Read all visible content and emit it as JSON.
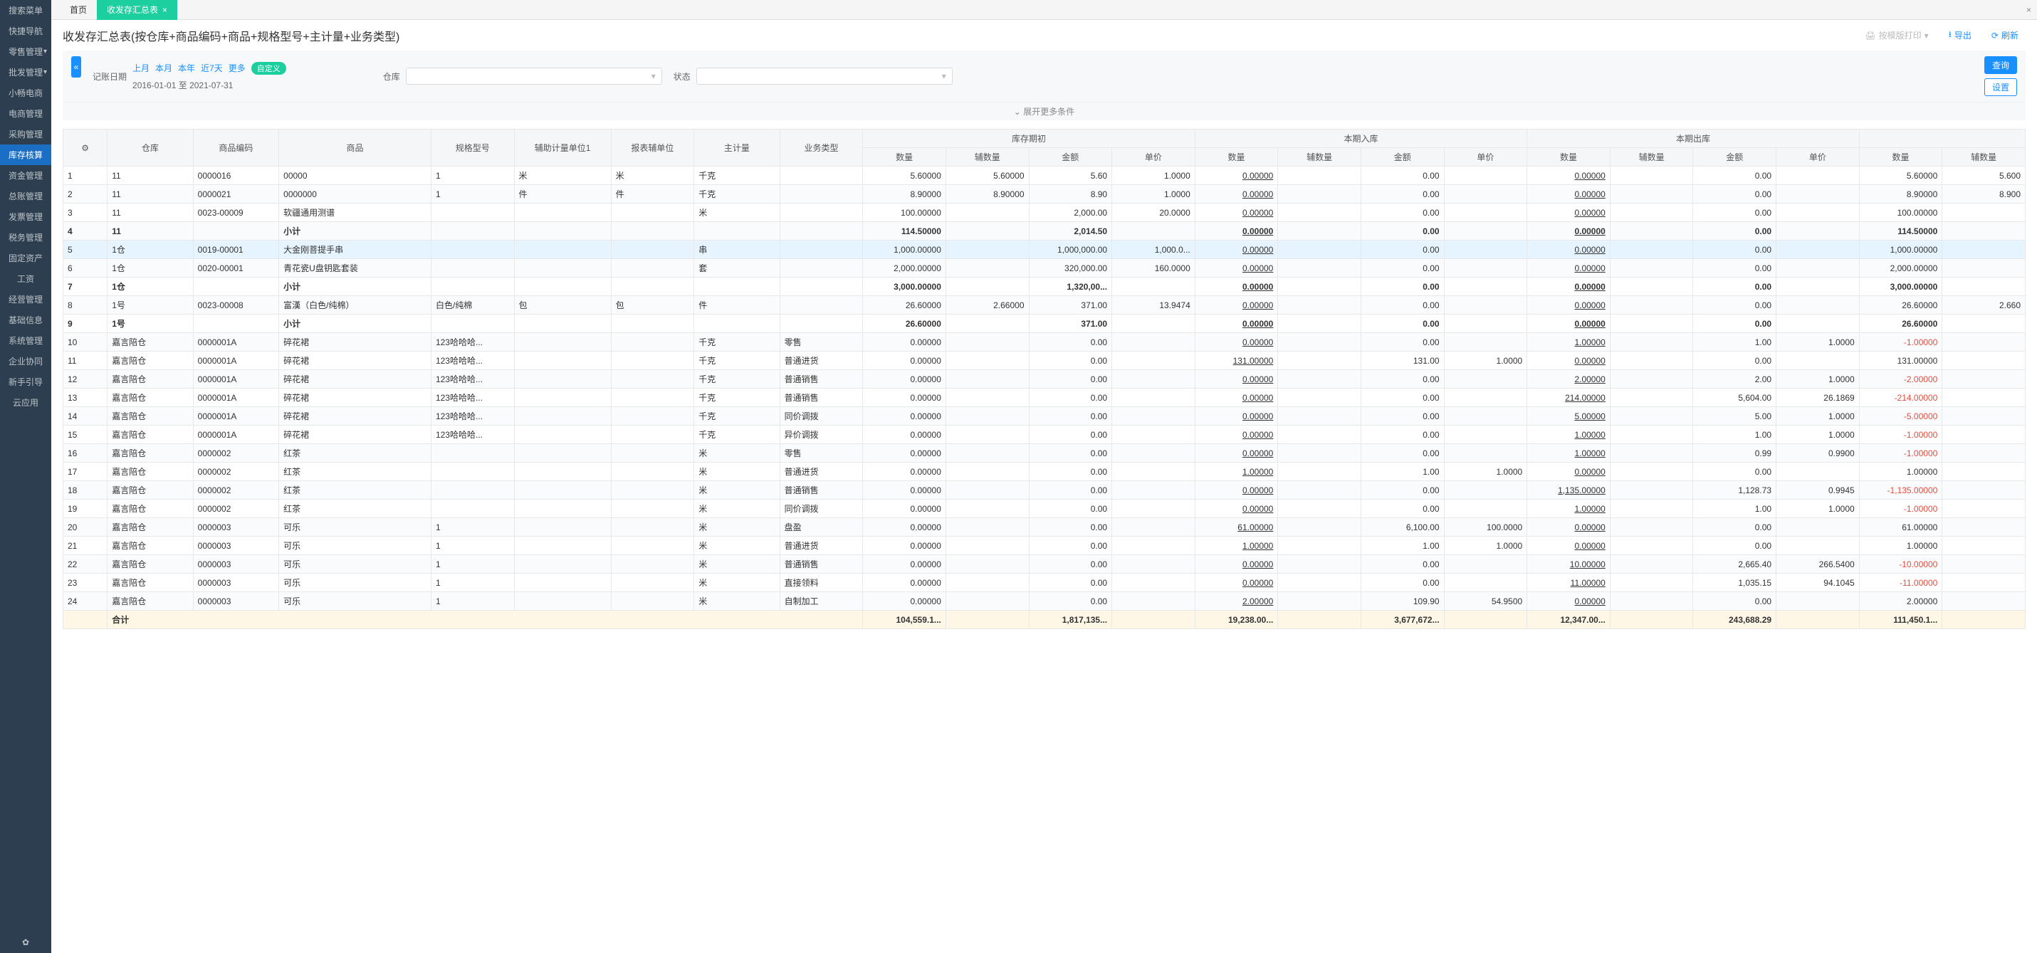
{
  "sidebar": {
    "items": [
      {
        "label": "搜索菜单"
      },
      {
        "label": "快捷导航"
      },
      {
        "label": "零售管理",
        "expandable": true
      },
      {
        "label": "批发管理",
        "expandable": true
      },
      {
        "label": "小畅电商"
      },
      {
        "label": "电商管理"
      },
      {
        "label": "采购管理"
      },
      {
        "label": "库存核算",
        "active": true
      },
      {
        "label": "资金管理"
      },
      {
        "label": "总账管理"
      },
      {
        "label": "发票管理"
      },
      {
        "label": "税务管理"
      },
      {
        "label": "固定资产"
      },
      {
        "label": "工资"
      },
      {
        "label": "经营管理"
      },
      {
        "label": "基础信息"
      },
      {
        "label": "系统管理"
      },
      {
        "label": "企业协同"
      },
      {
        "label": "新手引导"
      },
      {
        "label": "云应用"
      }
    ]
  },
  "tabs": {
    "home": "首页",
    "current": "收发存汇总表"
  },
  "page": {
    "title": "收发存汇总表(按仓库+商品编码+商品+规格型号+主计量+业务类型)",
    "print": "按模版打印",
    "export": "导出",
    "refresh": "刷新"
  },
  "filter": {
    "date_label": "记账日期",
    "shortcuts": [
      "上月",
      "本月",
      "本年",
      "近7天",
      "更多"
    ],
    "custom_badge": "自定义",
    "date_range": "2016-01-01 至 2021-07-31",
    "warehouse_label": "仓库",
    "status_label": "状态",
    "query": "查询",
    "settings": "设置",
    "expand": "展开更多条件"
  },
  "columns": {
    "gear": "⚙",
    "warehouse": "仓库",
    "code": "商品编码",
    "product": "商品",
    "spec": "规格型号",
    "aux_unit": "辅助计量单位1",
    "inv_unit": "报表辅单位",
    "main_unit": "主计量",
    "biz_type": "业务类型",
    "group_open": "库存期初",
    "group_in": "本期入库",
    "group_out": "本期出库",
    "qty": "数量",
    "aux_qty": "辅数量",
    "amount": "金额",
    "price": "单价"
  },
  "rows": [
    {
      "idx": "1",
      "wh": "11",
      "code": "0000016",
      "name": "00000",
      "spec": "1",
      "aux": "米",
      "inv": "米",
      "main": "千克",
      "biz": "",
      "o_qty": "5.60000",
      "o_aux": "5.60000",
      "o_amt": "5.60",
      "o_pr": "1.0000",
      "i_qty": "0.00000",
      "i_amt": "0.00",
      "out_qty": "0.00000",
      "out_amt": "0.00",
      "b_qty": "5.60000",
      "b_aux": "5.600"
    },
    {
      "idx": "2",
      "wh": "11",
      "code": "0000021",
      "name": "0000000",
      "spec": "1",
      "aux": "件",
      "inv": "件",
      "main": "千克",
      "biz": "",
      "o_qty": "8.90000",
      "o_aux": "8.90000",
      "o_amt": "8.90",
      "o_pr": "1.0000",
      "i_qty": "0.00000",
      "i_amt": "0.00",
      "out_qty": "0.00000",
      "out_amt": "0.00",
      "b_qty": "8.90000",
      "b_aux": "8.900"
    },
    {
      "idx": "3",
      "wh": "11",
      "code": "0023-00009",
      "name": "软疆通用测谱",
      "spec": "",
      "aux": "",
      "inv": "",
      "main": "米",
      "biz": "",
      "o_qty": "100.00000",
      "o_aux": "",
      "o_amt": "2,000.00",
      "o_pr": "20.0000",
      "i_qty": "0.00000",
      "i_amt": "0.00",
      "out_qty": "0.00000",
      "out_amt": "0.00",
      "b_qty": "100.00000",
      "b_aux": ""
    },
    {
      "idx": "4",
      "wh": "11",
      "code": "",
      "name": "小计",
      "sub": true,
      "o_qty": "114.50000",
      "o_amt": "2,014.50",
      "i_qty": "0.00000",
      "i_amt": "0.00",
      "out_qty": "0.00000",
      "out_amt": "0.00",
      "b_qty": "114.50000"
    },
    {
      "idx": "5",
      "wh": "1仓",
      "code": "0019-00001",
      "name": "大金刚菩提手串",
      "main": "串",
      "hl": true,
      "o_qty": "1,000.00000",
      "o_amt": "1,000,000.00",
      "o_pr": "1,000.0...",
      "i_qty": "0.00000",
      "i_amt": "0.00",
      "out_qty": "0.00000",
      "out_amt": "0.00",
      "b_qty": "1,000.00000"
    },
    {
      "idx": "6",
      "wh": "1仓",
      "code": "0020-00001",
      "name": "青花瓷U盘钥匙套装",
      "main": "套",
      "o_qty": "2,000.00000",
      "o_amt": "320,000.00",
      "o_pr": "160.0000",
      "i_qty": "0.00000",
      "i_amt": "0.00",
      "out_qty": "0.00000",
      "out_amt": "0.00",
      "b_qty": "2,000.00000"
    },
    {
      "idx": "7",
      "wh": "1仓",
      "code": "",
      "name": "小计",
      "sub": true,
      "o_qty": "3,000.00000",
      "o_amt": "1,320,00...",
      "i_qty": "0.00000",
      "i_amt": "0.00",
      "out_qty": "0.00000",
      "out_amt": "0.00",
      "b_qty": "3,000.00000"
    },
    {
      "idx": "8",
      "wh": "1号",
      "code": "0023-00008",
      "name": "富漢（白色/纯棉）",
      "spec": "白色/纯棉",
      "aux": "包",
      "inv": "包",
      "main": "件",
      "o_qty": "26.60000",
      "o_aux": "2.66000",
      "o_amt": "371.00",
      "o_pr": "13.9474",
      "i_qty": "0.00000",
      "i_amt": "0.00",
      "out_qty": "0.00000",
      "out_amt": "0.00",
      "b_qty": "26.60000",
      "b_aux": "2.660"
    },
    {
      "idx": "9",
      "wh": "1号",
      "code": "",
      "name": "小计",
      "sub": true,
      "o_qty": "26.60000",
      "o_amt": "371.00",
      "i_qty": "0.00000",
      "i_amt": "0.00",
      "out_qty": "0.00000",
      "out_amt": "0.00",
      "b_qty": "26.60000"
    },
    {
      "idx": "10",
      "wh": "嘉言陪仓",
      "code": "0000001A",
      "name": "碎花裙",
      "spec": "123哈哈哈...",
      "main": "千克",
      "biz": "零售",
      "o_qty": "0.00000",
      "o_amt": "0.00",
      "i_qty": "0.00000",
      "i_amt": "0.00",
      "out_qty": "1.00000",
      "out_amt": "1.00",
      "out_pr": "1.0000",
      "b_qty": "-1.00000",
      "neg": true
    },
    {
      "idx": "11",
      "wh": "嘉言陪仓",
      "code": "0000001A",
      "name": "碎花裙",
      "spec": "123哈哈哈...",
      "main": "千克",
      "biz": "普通进货",
      "o_qty": "0.00000",
      "o_amt": "0.00",
      "i_qty": "131.00000",
      "i_amt": "131.00",
      "i_pr": "1.0000",
      "out_qty": "0.00000",
      "out_amt": "0.00",
      "b_qty": "131.00000"
    },
    {
      "idx": "12",
      "wh": "嘉言陪仓",
      "code": "0000001A",
      "name": "碎花裙",
      "spec": "123哈哈哈...",
      "main": "千克",
      "biz": "普通销售",
      "o_qty": "0.00000",
      "o_amt": "0.00",
      "i_qty": "0.00000",
      "i_amt": "0.00",
      "out_qty": "2.00000",
      "out_amt": "2.00",
      "out_pr": "1.0000",
      "b_qty": "-2.00000",
      "neg": true
    },
    {
      "idx": "13",
      "wh": "嘉言陪仓",
      "code": "0000001A",
      "name": "碎花裙",
      "spec": "123哈哈哈...",
      "main": "千克",
      "biz": "普通销售",
      "o_qty": "0.00000",
      "o_amt": "0.00",
      "i_qty": "0.00000",
      "i_amt": "0.00",
      "out_qty": "214.00000",
      "out_amt": "5,604.00",
      "out_pr": "26.1869",
      "b_qty": "-214.00000",
      "neg": true
    },
    {
      "idx": "14",
      "wh": "嘉言陪仓",
      "code": "0000001A",
      "name": "碎花裙",
      "spec": "123哈哈哈...",
      "main": "千克",
      "biz": "同价调拨",
      "o_qty": "0.00000",
      "o_amt": "0.00",
      "i_qty": "0.00000",
      "i_amt": "0.00",
      "out_qty": "5.00000",
      "out_amt": "5.00",
      "out_pr": "1.0000",
      "b_qty": "-5.00000",
      "neg": true
    },
    {
      "idx": "15",
      "wh": "嘉言陪仓",
      "code": "0000001A",
      "name": "碎花裙",
      "spec": "123哈哈哈...",
      "main": "千克",
      "biz": "异价调拨",
      "o_qty": "0.00000",
      "o_amt": "0.00",
      "i_qty": "0.00000",
      "i_amt": "0.00",
      "out_qty": "1.00000",
      "out_amt": "1.00",
      "out_pr": "1.0000",
      "b_qty": "-1.00000",
      "neg": true
    },
    {
      "idx": "16",
      "wh": "嘉言陪仓",
      "code": "0000002",
      "name": "红茶",
      "main": "米",
      "biz": "零售",
      "o_qty": "0.00000",
      "o_amt": "0.00",
      "i_qty": "0.00000",
      "i_amt": "0.00",
      "out_qty": "1.00000",
      "out_amt": "0.99",
      "out_pr": "0.9900",
      "b_qty": "-1.00000",
      "neg": true
    },
    {
      "idx": "17",
      "wh": "嘉言陪仓",
      "code": "0000002",
      "name": "红茶",
      "main": "米",
      "biz": "普通进货",
      "o_qty": "0.00000",
      "o_amt": "0.00",
      "i_qty": "1.00000",
      "i_amt": "1.00",
      "i_pr": "1.0000",
      "out_qty": "0.00000",
      "out_amt": "0.00",
      "b_qty": "1.00000"
    },
    {
      "idx": "18",
      "wh": "嘉言陪仓",
      "code": "0000002",
      "name": "红茶",
      "main": "米",
      "biz": "普通销售",
      "o_qty": "0.00000",
      "o_amt": "0.00",
      "i_qty": "0.00000",
      "i_amt": "0.00",
      "out_qty": "1,135.00000",
      "out_amt": "1,128.73",
      "out_pr": "0.9945",
      "b_qty": "-1,135.00000",
      "neg": true
    },
    {
      "idx": "19",
      "wh": "嘉言陪仓",
      "code": "0000002",
      "name": "红茶",
      "main": "米",
      "biz": "同价调拨",
      "o_qty": "0.00000",
      "o_amt": "0.00",
      "i_qty": "0.00000",
      "i_amt": "0.00",
      "out_qty": "1.00000",
      "out_amt": "1.00",
      "out_pr": "1.0000",
      "b_qty": "-1.00000",
      "neg": true
    },
    {
      "idx": "20",
      "wh": "嘉言陪仓",
      "code": "0000003",
      "name": "可乐",
      "spec": "1",
      "main": "米",
      "biz": "盘盈",
      "o_qty": "0.00000",
      "o_amt": "0.00",
      "i_qty": "61.00000",
      "i_amt": "6,100.00",
      "i_pr": "100.0000",
      "out_qty": "0.00000",
      "out_amt": "0.00",
      "b_qty": "61.00000"
    },
    {
      "idx": "21",
      "wh": "嘉言陪仓",
      "code": "0000003",
      "name": "可乐",
      "spec": "1",
      "main": "米",
      "biz": "普通进货",
      "o_qty": "0.00000",
      "o_amt": "0.00",
      "i_qty": "1.00000",
      "i_amt": "1.00",
      "i_pr": "1.0000",
      "out_qty": "0.00000",
      "out_amt": "0.00",
      "b_qty": "1.00000"
    },
    {
      "idx": "22",
      "wh": "嘉言陪仓",
      "code": "0000003",
      "name": "可乐",
      "spec": "1",
      "main": "米",
      "biz": "普通销售",
      "o_qty": "0.00000",
      "o_amt": "0.00",
      "i_qty": "0.00000",
      "i_amt": "0.00",
      "out_qty": "10.00000",
      "out_amt": "2,665.40",
      "out_pr": "266.5400",
      "b_qty": "-10.00000",
      "neg": true
    },
    {
      "idx": "23",
      "wh": "嘉言陪仓",
      "code": "0000003",
      "name": "可乐",
      "spec": "1",
      "main": "米",
      "biz": "直接领料",
      "o_qty": "0.00000",
      "o_amt": "0.00",
      "i_qty": "0.00000",
      "i_amt": "0.00",
      "out_qty": "11.00000",
      "out_amt": "1,035.15",
      "out_pr": "94.1045",
      "b_qty": "-11.00000",
      "neg": true
    },
    {
      "idx": "24",
      "wh": "嘉言陪仓",
      "code": "0000003",
      "name": "可乐",
      "spec": "1",
      "main": "米",
      "biz": "自制加工",
      "o_qty": "0.00000",
      "o_amt": "0.00",
      "i_qty": "2.00000",
      "i_amt": "109.90",
      "i_pr": "54.9500",
      "out_qty": "0.00000",
      "out_amt": "0.00",
      "b_qty": "2.00000"
    }
  ],
  "total": {
    "label": "合计",
    "o_qty": "104,559.1...",
    "o_amt": "1,817,135...",
    "i_qty": "19,238.00...",
    "i_amt": "3,677,672...",
    "out_qty": "12,347.00...",
    "out_amt": "243,688.29",
    "b_qty": "111,450.1..."
  }
}
